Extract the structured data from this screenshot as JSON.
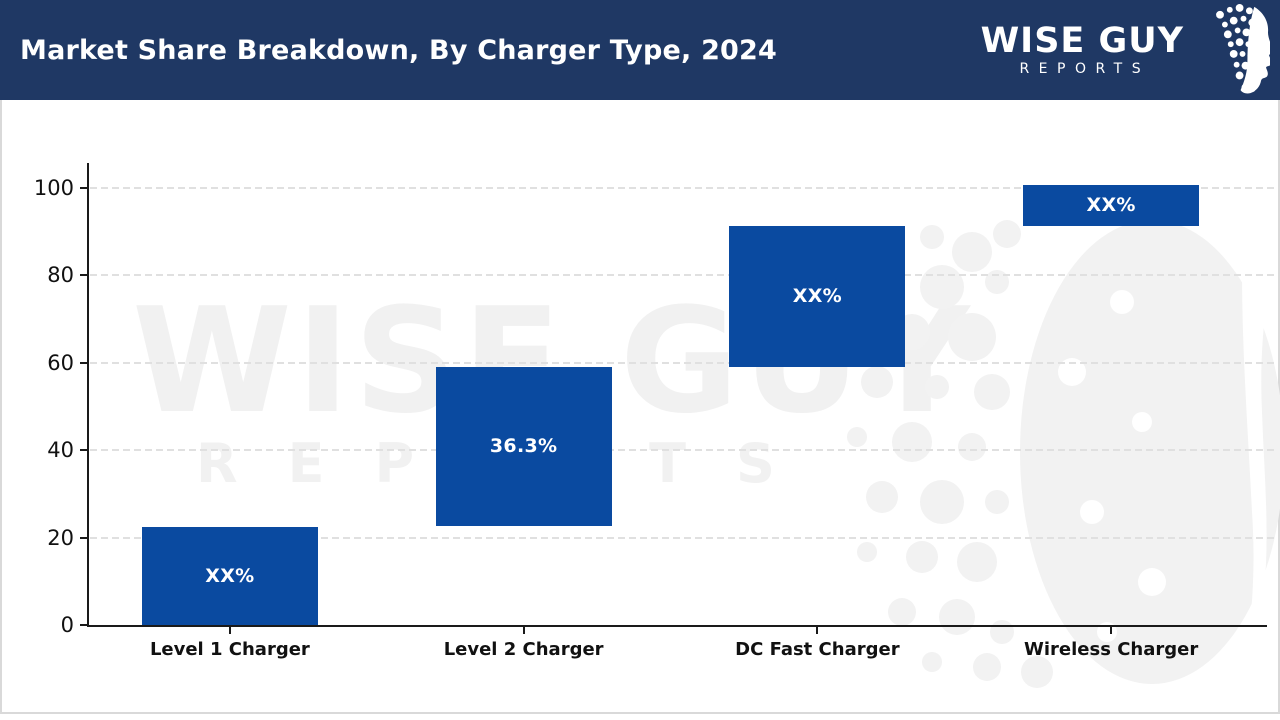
{
  "header": {
    "title": "Market Share Breakdown, By Charger Type, 2024",
    "bg_color": "#1f3864",
    "logo": {
      "line1": "WISE GUY",
      "line2": "REPORTS"
    }
  },
  "watermark": {
    "line1": "WISE GUY",
    "line2": "REPORTS"
  },
  "chart_data": {
    "type": "bar",
    "subtype": "waterfall-stacked-breakdown",
    "title": "Market Share Breakdown, By Charger Type, 2024",
    "categories": [
      "Level 1 Charger",
      "Level 2 Charger",
      "DC Fast Charger",
      "Wireless Charger"
    ],
    "segments": [
      {
        "category": "Level 1 Charger",
        "start": 0,
        "end": 22.4,
        "value_label": "XX%"
      },
      {
        "category": "Level 2 Charger",
        "start": 22.7,
        "end": 59.0,
        "value_label": "36.3%"
      },
      {
        "category": "DC Fast Charger",
        "start": 59.0,
        "end": 91.3,
        "value_label": "XX%"
      },
      {
        "category": "Wireless Charger",
        "start": 91.3,
        "end": 100.6,
        "value_label": "XX%"
      }
    ],
    "y_ticks": [
      0,
      20,
      40,
      60,
      80,
      100
    ],
    "ylim": [
      0,
      105
    ],
    "xlabel": "",
    "ylabel": "",
    "grid": "horizontal-dashed",
    "legend": "none",
    "bar_color": "#0a4aa0",
    "value_label_color": "#ffffff",
    "axis_color": "#1a1a1a",
    "grid_color": "#e0e0e0"
  }
}
